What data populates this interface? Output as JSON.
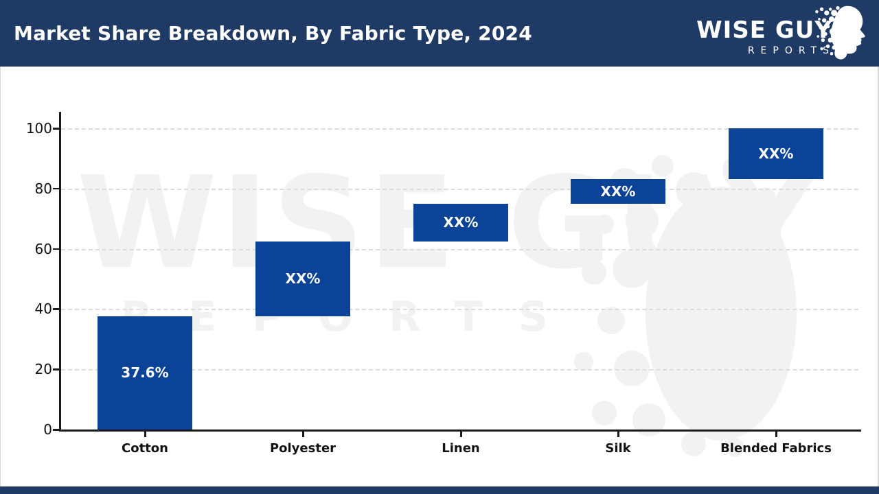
{
  "header": {
    "title": "Market Share Breakdown, By Fabric Type, 2024",
    "logo": {
      "wordmark": "WISE GUY",
      "subtext": "REPORTS"
    }
  },
  "watermark": {
    "line1": "WISE GUY",
    "line2": "REPORTS"
  },
  "colors": {
    "header_bg": "#203a66",
    "bar": "#0a4397",
    "bar_label": "#ffffff",
    "gridline": "#dcdcdc",
    "axis": "#1a1a1a",
    "watermark": "#f2f2f2"
  },
  "chart_data": {
    "type": "bar",
    "subtype": "waterfall",
    "title": "Market Share Breakdown, By Fabric Type, 2024",
    "categories": [
      "Cotton",
      "Polyester",
      "Linen",
      "Silk",
      "Blended Fabrics"
    ],
    "segments": [
      {
        "category": "Cotton",
        "start": 0,
        "end": 37.6,
        "label": "37.6%"
      },
      {
        "category": "Polyester",
        "start": 37.6,
        "end": 62.4,
        "label": "XX%"
      },
      {
        "category": "Linen",
        "start": 62.4,
        "end": 75.0,
        "label": "XX%"
      },
      {
        "category": "Silk",
        "start": 75.0,
        "end": 83.2,
        "label": "XX%"
      },
      {
        "category": "Blended Fabrics",
        "start": 83.2,
        "end": 100.0,
        "label": "XX%"
      }
    ],
    "yticks": [
      0,
      20,
      40,
      60,
      80,
      100
    ],
    "ylim": [
      0,
      105
    ],
    "xlabel": "",
    "ylabel": "",
    "grid": "horizontal dashed",
    "legend": "none"
  }
}
